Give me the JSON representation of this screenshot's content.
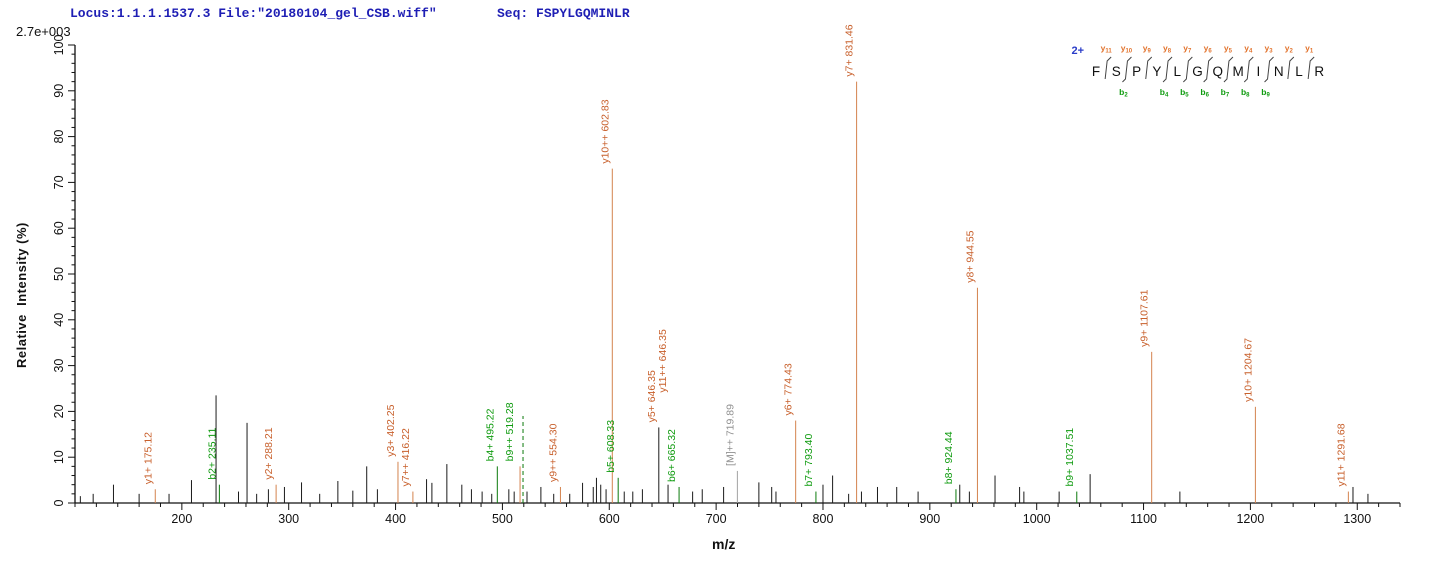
{
  "header": {
    "locus": "Locus:1.1.1.1537.3 File:\"20180104_gel_CSB.wiff\"",
    "seq_label": "Seq: ",
    "sequence": "FSPYLGQMINLR",
    "text_color": "#1e1eb4"
  },
  "peptide_diagram": {
    "charge_label": "2+",
    "charge_color": "#2a3cc8",
    "residue_color": "#111111",
    "y_color": "#e2732d",
    "b_color": "#0f9b0f",
    "residues": [
      "F",
      "S",
      "P",
      "Y",
      "L",
      "G",
      "Q",
      "M",
      "I",
      "N",
      "L",
      "R"
    ],
    "gaps": [
      {
        "y": "y11",
        "b": ""
      },
      {
        "y": "y10",
        "b": "b2"
      },
      {
        "y": "y9",
        "b": ""
      },
      {
        "y": "y8",
        "b": "b4"
      },
      {
        "y": "y7",
        "b": "b5"
      },
      {
        "y": "y6",
        "b": "b6"
      },
      {
        "y": "y5",
        "b": "b7"
      },
      {
        "y": "y4",
        "b": "b8"
      },
      {
        "y": "y3",
        "b": "b9"
      },
      {
        "y": "y2",
        "b": ""
      },
      {
        "y": "y1",
        "b": ""
      }
    ]
  },
  "chart_data": {
    "type": "bar",
    "title": "",
    "xlabel": "m/z",
    "ylabel": "Relative  Intensity (%)",
    "intensity_scale_label": "2.7e+003",
    "xlim": [
      100,
      1340
    ],
    "ylim": [
      0,
      100
    ],
    "x_major_ticks": [
      200,
      300,
      400,
      500,
      600,
      700,
      800,
      900,
      1000,
      1100,
      1200,
      1300
    ],
    "x_minor_step": 20,
    "y_major_ticks": [
      0,
      10,
      20,
      30,
      40,
      50,
      60,
      70,
      80,
      90,
      100
    ],
    "y_minor_step": 2,
    "axis_color": "#111111",
    "series": [
      {
        "name": "y-ions",
        "text_color": "#c8602c",
        "line_color": "#d4834e",
        "peaks": [
          {
            "label": "y1+ 175.12",
            "mz": 175.12,
            "h": 3
          },
          {
            "label": "y2+ 288.21",
            "mz": 288.21,
            "h": 4
          },
          {
            "label": "y3+ 402.25",
            "mz": 402.25,
            "h": 9
          },
          {
            "label": "y7++ 416.22",
            "mz": 416.22,
            "h": 2.5
          },
          {
            "label": "",
            "mz": 516.5,
            "h": 8
          },
          {
            "label": "y9++ 554.30",
            "mz": 554.3,
            "h": 3.5
          },
          {
            "label": "y10++ 602.83",
            "mz": 602.83,
            "h": 73
          },
          {
            "label": "y5+ 646.35",
            "mz": 646.35,
            "h": 16.5,
            "line_color": "#1a1a1a"
          },
          {
            "label": "y11++ 646.35",
            "mz": 646.35,
            "h": 16.5,
            "no_line": true,
            "dx": 11,
            "label_h": 23
          },
          {
            "label": "y6+ 774.43",
            "mz": 774.43,
            "h": 18
          },
          {
            "label": "y7+ 831.46",
            "mz": 831.46,
            "h": 92
          },
          {
            "label": "y8+ 944.55",
            "mz": 944.55,
            "h": 47
          },
          {
            "label": "y9+ 1107.61",
            "mz": 1107.61,
            "h": 33
          },
          {
            "label": "y10+ 1204.67",
            "mz": 1204.67,
            "h": 21
          },
          {
            "label": "y11+ 1291.68",
            "mz": 1291.68,
            "h": 2.5
          }
        ]
      },
      {
        "name": "b-ions",
        "text_color": "#0f9b0f",
        "line_color": "#0b7a0b",
        "peaks": [
          {
            "label": "b2+ 235.11",
            "mz": 235.11,
            "h": 4
          },
          {
            "label": "b4+ 495.22",
            "mz": 495.22,
            "h": 8
          },
          {
            "label": "b9++ 519.28",
            "mz": 519.28,
            "h": 19,
            "dashed": true,
            "label_h": 8,
            "dx": -6
          },
          {
            "label": "b5+ 608.33",
            "mz": 608.33,
            "h": 5.5
          },
          {
            "label": "b6+ 665.32",
            "mz": 665.32,
            "h": 3.5
          },
          {
            "label": "b7+ 793.40",
            "mz": 793.4,
            "h": 2.5
          },
          {
            "label": "b8+ 924.44",
            "mz": 924.44,
            "h": 3
          },
          {
            "label": "b9+ 1037.51",
            "mz": 1037.51,
            "h": 2.5
          }
        ]
      },
      {
        "name": "precursor",
        "text_color": "#909090",
        "line_color": "#a2a2a2",
        "peaks": [
          {
            "label": "[M]++ 719.89",
            "mz": 719.89,
            "h": 7
          }
        ]
      },
      {
        "name": "unassigned",
        "line_color": "#1a1a1a",
        "points": [
          [
            105,
            1.5
          ],
          [
            117,
            2
          ],
          [
            136,
            4
          ],
          [
            160,
            2
          ],
          [
            188,
            2
          ],
          [
            209,
            5
          ],
          [
            232,
            23.5
          ],
          [
            253,
            2.5
          ],
          [
            261,
            17.5
          ],
          [
            270,
            2
          ],
          [
            281,
            3
          ],
          [
            296,
            3.5
          ],
          [
            312,
            4.5
          ],
          [
            329,
            2
          ],
          [
            346,
            4.8
          ],
          [
            360,
            2.7
          ],
          [
            373,
            8
          ],
          [
            383,
            3
          ],
          [
            429,
            5.2
          ],
          [
            434,
            4.4
          ],
          [
            448,
            8.5
          ],
          [
            462,
            4
          ],
          [
            471,
            3
          ],
          [
            481,
            2.5
          ],
          [
            490,
            2
          ],
          [
            506,
            3
          ],
          [
            511,
            2.5
          ],
          [
            523,
            2.5
          ],
          [
            536,
            3.5
          ],
          [
            548,
            2
          ],
          [
            563,
            2
          ],
          [
            575,
            4.4
          ],
          [
            585,
            3.5
          ],
          [
            588,
            5.5
          ],
          [
            592,
            4
          ],
          [
            597,
            3
          ],
          [
            614,
            2.5
          ],
          [
            622,
            2.5
          ],
          [
            631,
            3
          ],
          [
            655,
            4
          ],
          [
            678,
            2.5
          ],
          [
            687,
            3
          ],
          [
            707,
            3.5
          ],
          [
            740,
            4.5
          ],
          [
            752,
            3.5
          ],
          [
            756,
            2.5
          ],
          [
            800,
            4
          ],
          [
            809,
            6
          ],
          [
            824,
            2
          ],
          [
            836,
            2.5
          ],
          [
            851,
            3.5
          ],
          [
            869,
            3.5
          ],
          [
            889,
            2.5
          ],
          [
            928,
            4
          ],
          [
            937,
            2.5
          ],
          [
            961,
            6
          ],
          [
            984,
            3.5
          ],
          [
            988,
            2.5
          ],
          [
            1021,
            2.5
          ],
          [
            1050,
            6.3
          ],
          [
            1134,
            2.5
          ],
          [
            1296,
            3.5
          ],
          [
            1310,
            2
          ]
        ]
      }
    ]
  }
}
